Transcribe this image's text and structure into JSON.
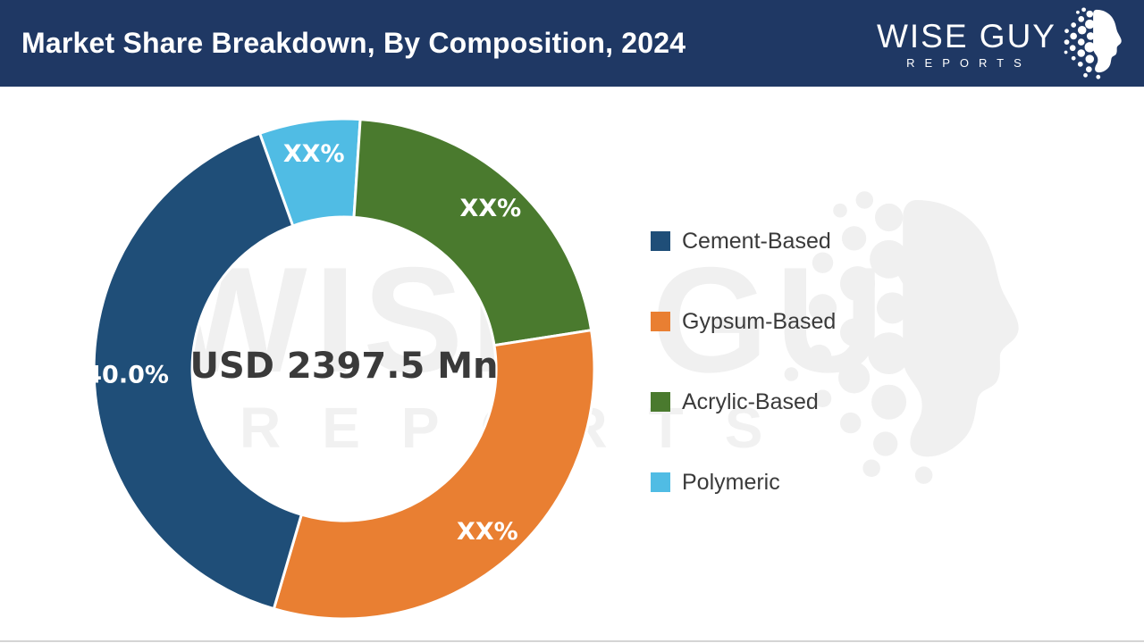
{
  "header": {
    "title": "Market Share Breakdown, By Composition, 2024",
    "logo": {
      "line1": "WISE GUY",
      "line2": "REPORTS"
    }
  },
  "chart_data": {
    "type": "pie",
    "subtype": "donut",
    "title": "Market Share Breakdown, By Composition, 2024",
    "center_label": "USD 2397.5 Mn",
    "start_angle_deg_clockwise_from_top": -19.7,
    "legend_position": "right",
    "segments": [
      {
        "name": "Cement-Based",
        "value_pct": 40.0,
        "label": "40.0%",
        "color": "#1F4E78"
      },
      {
        "name": "Gypsum-Based",
        "value_pct": 32.0,
        "label": "XX%",
        "color": "#E97F32"
      },
      {
        "name": "Acrylic-Based",
        "value_pct": 21.5,
        "label": "XX%",
        "color": "#4A7A2E"
      },
      {
        "name": "Polymeric",
        "value_pct": 6.5,
        "label": "XX%",
        "color": "#50BCE4"
      }
    ]
  },
  "watermark": {
    "line1": "WISE GUY",
    "line2": "REPORTS"
  },
  "colors": {
    "header_bg": "#1F3864",
    "text_dark": "#3A3A3A",
    "watermark": "#F0F0F0",
    "bottom_line": "#D5D5D5"
  }
}
